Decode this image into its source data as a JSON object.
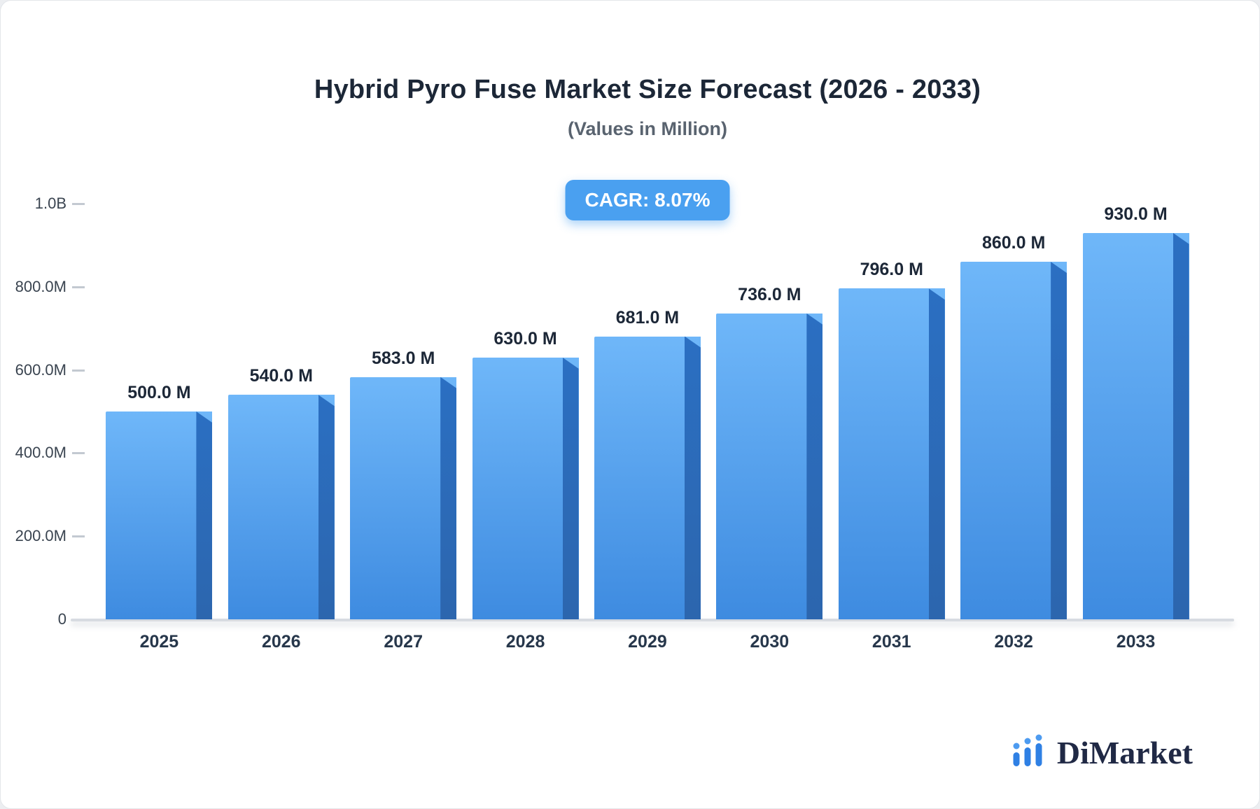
{
  "theme": {
    "bar_top": "#6FB7F9",
    "bar_bottom": "#3E8BE0",
    "bar_side": "#2B6FC2",
    "badge_bg": "#4AA0F0",
    "axis_color": "#D7DBE1",
    "text_dark": "#1C2737",
    "text_muted": "#59636F",
    "logo_blue": "#2F80E4"
  },
  "header": {
    "title": "Hybrid Pyro Fuse Market Size Forecast (2026 - 2033)",
    "subtitle": "(Values in Million)"
  },
  "badge": {
    "label": "CAGR: 8.07%"
  },
  "chart_data": {
    "type": "bar",
    "title": "Hybrid Pyro Fuse Market Size Forecast (2026 - 2033)",
    "subtitle": "(Values in Million)",
    "unit": "Million",
    "cagr": "8.07%",
    "categories": [
      "2025",
      "2026",
      "2027",
      "2028",
      "2029",
      "2030",
      "2031",
      "2032",
      "2033"
    ],
    "values": [
      500,
      540,
      583,
      630,
      681,
      736,
      796,
      860,
      930
    ],
    "value_labels": [
      "500.0 M",
      "540.0 M",
      "583.0 M",
      "630.0 M",
      "681.0 M",
      "736.0 M",
      "796.0 M",
      "860.0 M",
      "930.0 M"
    ],
    "xlabel": "",
    "ylabel": "",
    "ylim": [
      0,
      1000
    ],
    "yticks": [
      {
        "value": 0,
        "label": "0"
      },
      {
        "value": 200,
        "label": "200.0M"
      },
      {
        "value": 400,
        "label": "400.0M"
      },
      {
        "value": 600,
        "label": "600.0M"
      },
      {
        "value": 800,
        "label": "800.0M"
      },
      {
        "value": 1000,
        "label": "1.0B"
      }
    ],
    "grid": false,
    "legend": false
  },
  "logo": {
    "text": "DiMarket"
  }
}
